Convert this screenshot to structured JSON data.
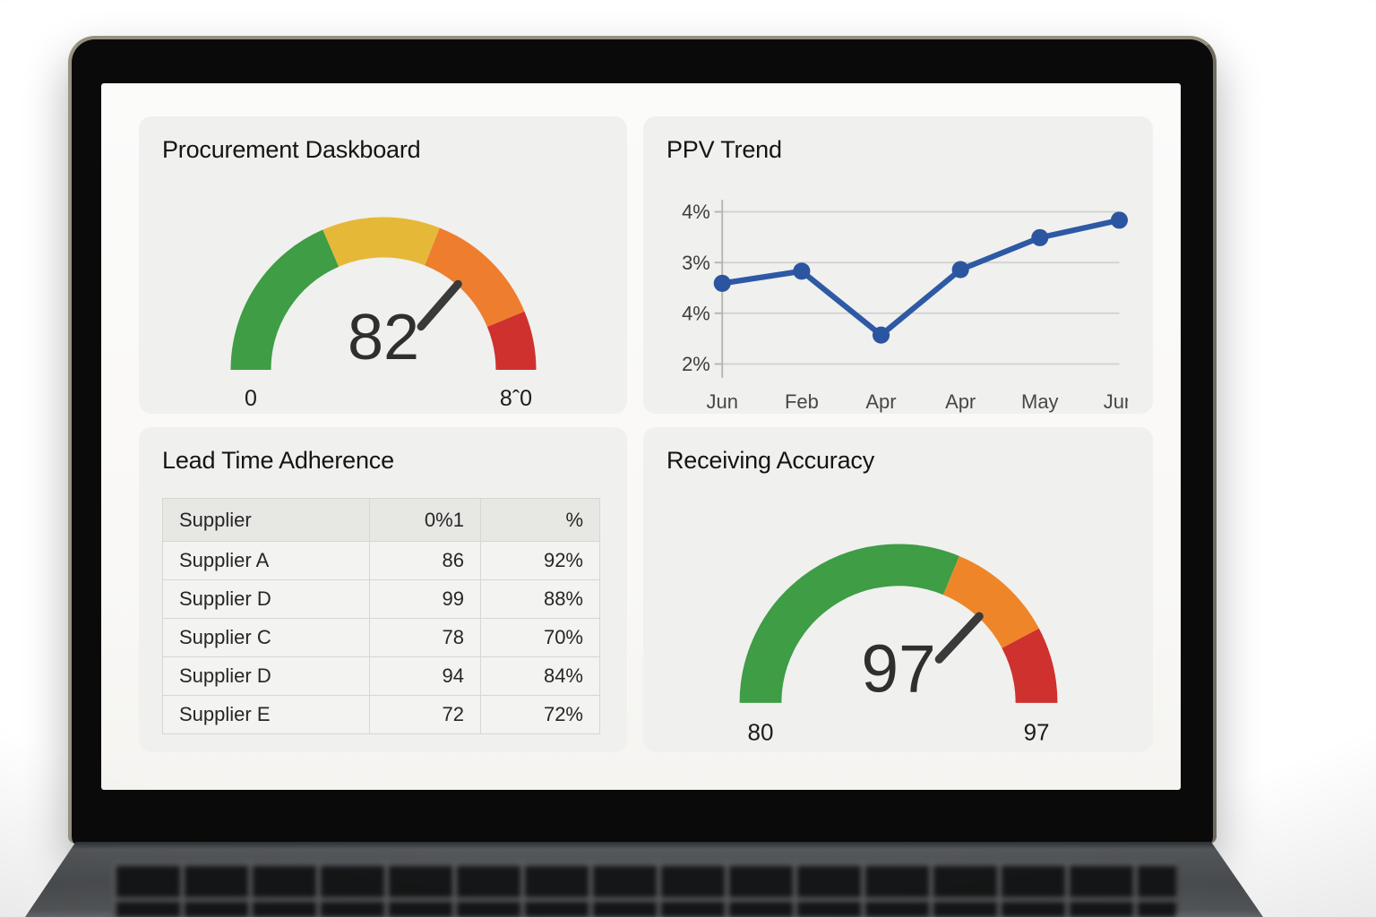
{
  "scene": {
    "wall_color": "#a3968a",
    "desk_color": "#7c5c36",
    "laptop_body_color": "#4b4e51",
    "screen_color": "#fbfbfa",
    "card_color": "#f0f0ee"
  },
  "chart_data": [
    {
      "type": "gauge",
      "title": "Procurement Daskboard",
      "value": "82",
      "min_label": "0",
      "max_label": "8ˆ0",
      "needle_angle_deg": 49,
      "needle_color": "#3a3a3a",
      "segments": [
        {
          "color": "#3e9d45",
          "from": 0.0,
          "to": 0.37
        },
        {
          "color": "#e5b838",
          "from": 0.37,
          "to": 0.62
        },
        {
          "color": "#ee7d2e",
          "from": 0.62,
          "to": 0.875
        },
        {
          "color": "#cf312e",
          "from": 0.875,
          "to": 1.0
        }
      ]
    },
    {
      "type": "line",
      "title": "PPV Trend",
      "x_labels": [
        "Jun",
        "Feb",
        "Apr",
        "Apr",
        "May",
        "Jun"
      ],
      "y_tick_labels": [
        "4%",
        "3%",
        "4%",
        "2%"
      ],
      "values": [
        3.06,
        3.22,
        2.38,
        3.24,
        3.66,
        3.89
      ],
      "ylim": [
        2,
        4
      ],
      "grid": true,
      "legend": "none",
      "line_color": "#2d59a5",
      "point_color": "#2b55a0"
    },
    {
      "type": "table",
      "title": "Lead Time Adherence",
      "columns": [
        "Supplier",
        "0%1",
        "%"
      ],
      "rows": [
        [
          "Supplier A",
          "86",
          "92%"
        ],
        [
          "Supplier D",
          "99",
          "88%"
        ],
        [
          "Supplier C",
          "78",
          "70%"
        ],
        [
          "Supplier D",
          "94",
          "84%"
        ],
        [
          "Supplier E",
          "72",
          "72%"
        ]
      ]
    },
    {
      "type": "gauge",
      "title": "Receiving Accuracy",
      "value": "97",
      "min_label": "80",
      "max_label": "97",
      "needle_angle_deg": 47,
      "needle_color": "#3a3a3a",
      "segments": [
        {
          "color": "#3e9d45",
          "from": 0.0,
          "to": 0.625
        },
        {
          "color": "#ee8629",
          "from": 0.625,
          "to": 0.845
        },
        {
          "color": "#cf312e",
          "from": 0.845,
          "to": 1.0
        }
      ]
    }
  ]
}
